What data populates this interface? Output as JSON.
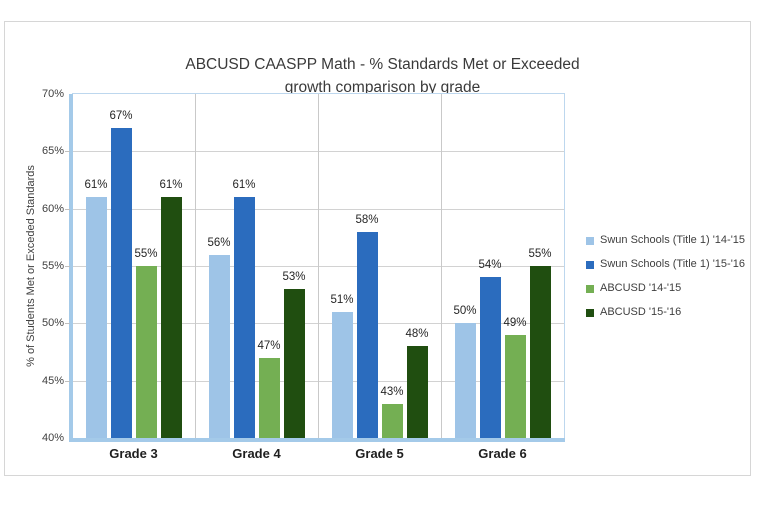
{
  "chart_data": {
    "type": "bar",
    "title": "ABCUSD CAASPP Math - % Standards Met or Exceeded",
    "subtitle": "growth comparison by grade",
    "ylabel": "% of Students Met or Exceded Standards",
    "categories": [
      "Grade 3",
      "Grade 4",
      "Grade 5",
      "Grade 6"
    ],
    "series": [
      {
        "name": "Swun Schools (Title 1) '14-'15",
        "color": "#9EC4E7",
        "values": [
          61,
          56,
          51,
          50
        ]
      },
      {
        "name": "Swun Schools (Title 1) '15-'16",
        "color": "#2B6CBE",
        "values": [
          67,
          61,
          58,
          54
        ]
      },
      {
        "name": "ABCUSD '14-'15",
        "color": "#74AF53",
        "values": [
          55,
          47,
          43,
          49
        ]
      },
      {
        "name": "ABCUSD '15-'16",
        "color": "#204E10",
        "values": [
          61,
          53,
          48,
          55
        ]
      }
    ],
    "data_labels": [
      "61%",
      "67%",
      "55%",
      "61%",
      "56%",
      "61%",
      "47%",
      "53%",
      "51%",
      "58%",
      "43%",
      "48%",
      "50%",
      "54%",
      "49%",
      "55%"
    ],
    "ylim": [
      40,
      70
    ],
    "ytick_step": 5,
    "ytick_labels": [
      "40%",
      "45%",
      "50%",
      "55%",
      "60%",
      "65%",
      "70%"
    ],
    "tick_format": "percent",
    "grid": true,
    "legend_position": "right"
  }
}
